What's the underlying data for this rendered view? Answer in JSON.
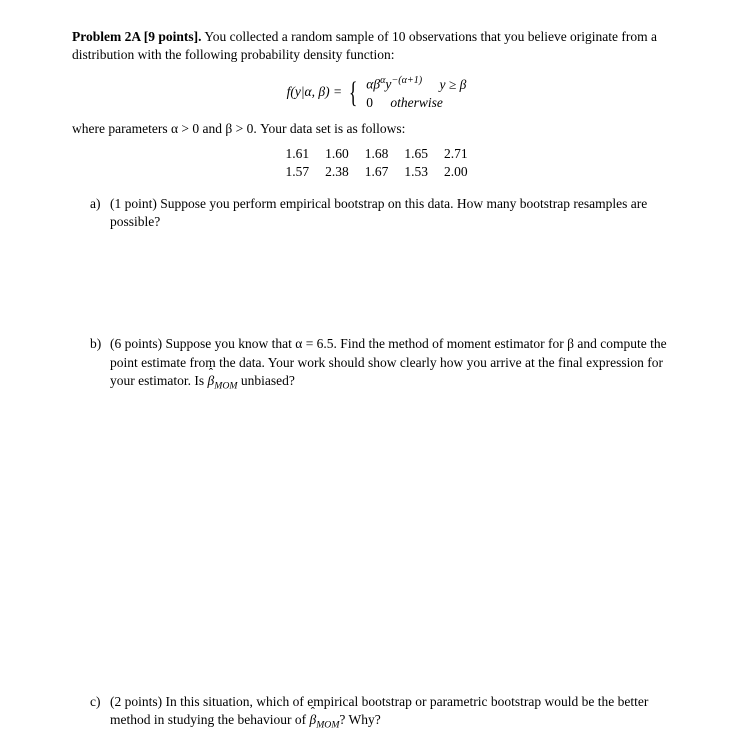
{
  "header": {
    "title": "Problem 2A [9 points].",
    "intro": "You collected a random sample of 10 observations that you believe originate from a distribution with the following probability density function:"
  },
  "pdf": {
    "lhs": "f(y|α, β) =",
    "case1_expr": "αβ",
    "case1_exp_alpha": "α",
    "case1_y": "y",
    "case1_exp_yexp": "−(α+1)",
    "case1_cond": "y ≥ β",
    "case2_expr": "0",
    "case2_cond": "otherwise"
  },
  "where": "where parameters α > 0 and β > 0. Your data set is as follows:",
  "data": {
    "row1": [
      "1.61",
      "1.60",
      "1.68",
      "1.65",
      "2.71"
    ],
    "row2": [
      "1.57",
      "2.38",
      "1.67",
      "1.53",
      "2.00"
    ]
  },
  "parts": {
    "a": {
      "label": "a)",
      "points": "(1 point)",
      "text": "Suppose you perform empirical bootstrap on this data. How many bootstrap resamples are possible?"
    },
    "b": {
      "label": "b)",
      "points": "(6 points)",
      "text1": "Suppose you know that α = 6.5. Find the method of moment estimator for β and compute the point estimate from the data. Your work should show clearly how you arrive at the final expression for your estimator. Is ",
      "betahat": "β",
      "betasub": "MOM",
      "text2": " unbiased?"
    },
    "c": {
      "label": "c)",
      "points": "(2 points)",
      "text1": "In this situation, which of empirical bootstrap or parametric bootstrap would be the better method in studying the behaviour of ",
      "betahat": "β",
      "betasub": "MOM",
      "text2": "? Why?"
    }
  }
}
